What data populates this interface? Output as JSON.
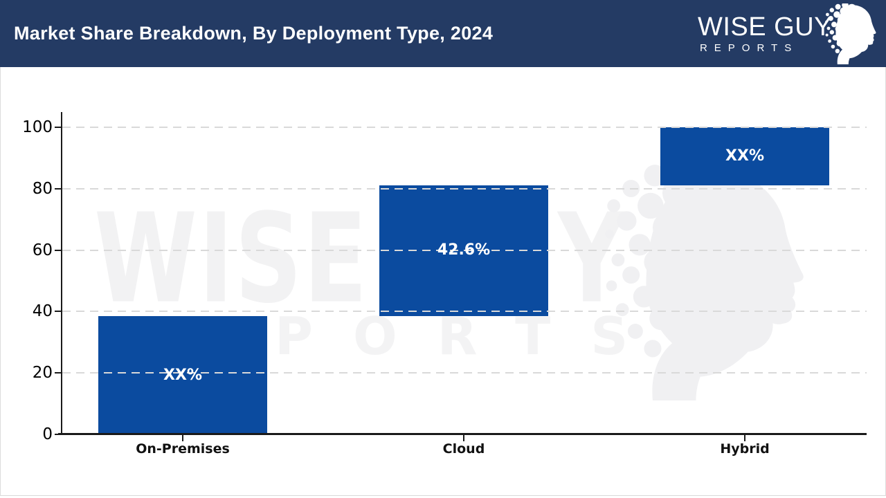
{
  "header": {
    "title": "Market Share Breakdown, By Deployment Type, 2024",
    "logo": {
      "line1": "WISE GUY",
      "line2": "REPORTS"
    }
  },
  "watermark": {
    "line1": "WISE GUY",
    "line2": "REPORTS"
  },
  "colors": {
    "header_background": "#243b64",
    "bar_blue": "#0b4b9f",
    "gridline_gray": "#d9d9d9",
    "axis_black": "#1a1a1a",
    "bar_label_white": "#ffffff",
    "watermark_gray": "#f2f2f3"
  },
  "chart_data": {
    "type": "bar",
    "subtype": "waterfall",
    "title": "Market Share Breakdown, By Deployment Type, 2024",
    "categories": [
      "On-Premises",
      "Cloud",
      "Hybrid"
    ],
    "segments": [
      {
        "category": "On-Premises",
        "start": 0,
        "end": 38.5,
        "label": "XX%"
      },
      {
        "category": "Cloud",
        "start": 38.5,
        "end": 81.1,
        "label": "42.6%"
      },
      {
        "category": "Hybrid",
        "start": 81.1,
        "end": 100,
        "label": "XX%"
      }
    ],
    "xlabel": "",
    "ylabel": "",
    "ylim": [
      0,
      100
    ],
    "yticks": [
      0,
      20,
      40,
      60,
      80,
      100
    ],
    "grid": "horizontal-dashed-over-bars",
    "legend": "none",
    "bar_color": "#0b4b9f",
    "label_color": "#ffffff"
  }
}
